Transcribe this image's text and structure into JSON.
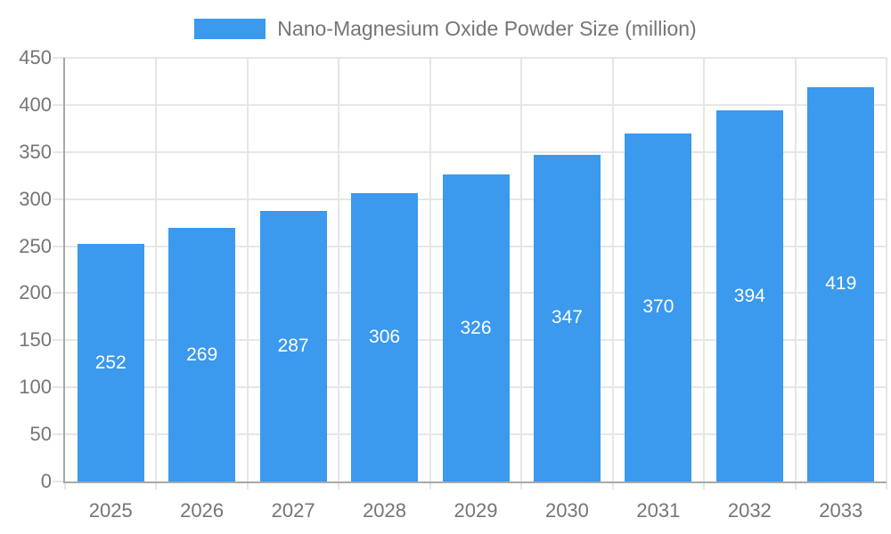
{
  "chart_data": {
    "type": "bar",
    "title": "",
    "legend": "Nano-Magnesium Oxide Powder Size (million)",
    "legend_position": "top",
    "categories": [
      "2025",
      "2026",
      "2027",
      "2028",
      "2029",
      "2030",
      "2031",
      "2032",
      "2033"
    ],
    "values": [
      252,
      269,
      287,
      306,
      326,
      347,
      370,
      394,
      419
    ],
    "xlabel": "",
    "ylabel": "",
    "ylim": [
      0,
      450
    ],
    "yticks": [
      0,
      50,
      100,
      150,
      200,
      250,
      300,
      350,
      400,
      450
    ],
    "grid": true
  },
  "colors": {
    "bar": "#3b99ee",
    "grid": "#e6e6e6",
    "axis": "#a8a8a8",
    "text": "#757575",
    "bar_label": "#ffffff"
  }
}
